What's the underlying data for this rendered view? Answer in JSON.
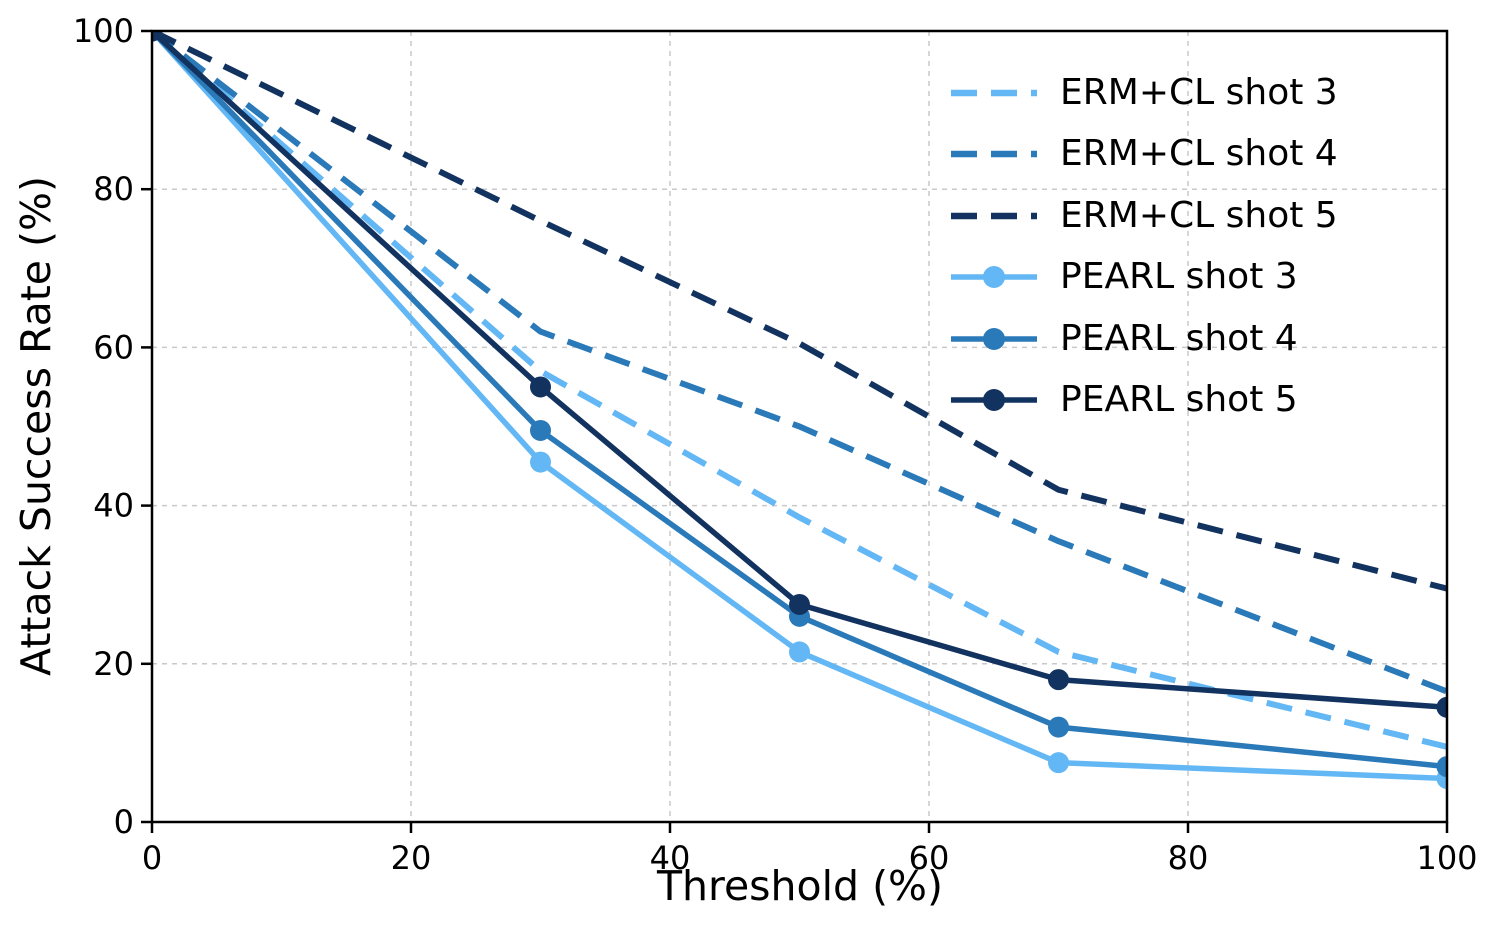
{
  "chart_data": {
    "type": "line",
    "title": "",
    "xlabel": "Threshold (%)",
    "ylabel": "Attack Success Rate (%)",
    "xlim": [
      0,
      100
    ],
    "ylim": [
      0,
      100
    ],
    "xticks": [
      0,
      20,
      40,
      60,
      80,
      100
    ],
    "yticks": [
      0,
      20,
      40,
      60,
      80,
      100
    ],
    "grid": true,
    "grid_color": "#c9c9c9",
    "axis_color": "#000000",
    "legend_position": "upper right",
    "x": [
      0,
      30,
      50,
      70,
      100
    ],
    "series": [
      {
        "name": "ERM+CL shot 3",
        "style": "dashed",
        "marker": false,
        "color": "#63b7f4",
        "values": [
          100,
          57,
          38.5,
          21.5,
          9.5
        ]
      },
      {
        "name": "ERM+CL shot 4",
        "style": "dashed",
        "marker": false,
        "color": "#2a79b8",
        "values": [
          100,
          62,
          50,
          35.5,
          16.5
        ]
      },
      {
        "name": "ERM+CL shot 5",
        "style": "dashed",
        "marker": false,
        "color": "#12325f",
        "values": [
          100,
          76,
          60.5,
          42,
          29.5
        ]
      },
      {
        "name": "PEARL shot 3",
        "style": "solid",
        "marker": true,
        "color": "#63b7f4",
        "values": [
          100,
          45.5,
          21.5,
          7.5,
          5.5
        ]
      },
      {
        "name": "PEARL shot 4",
        "style": "solid",
        "marker": true,
        "color": "#2a79b8",
        "values": [
          100,
          49.5,
          26,
          12,
          7
        ]
      },
      {
        "name": "PEARL shot 5",
        "style": "solid",
        "marker": true,
        "color": "#12325f",
        "values": [
          100,
          55,
          27.5,
          18,
          14.5
        ]
      }
    ]
  }
}
